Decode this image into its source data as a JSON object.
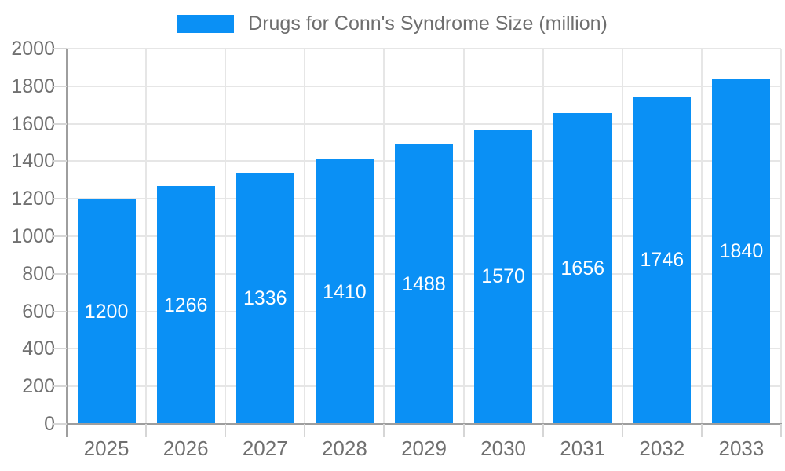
{
  "legend": {
    "label": "Drugs for Conn's Syndrome Size (million)",
    "swatch_color": "#0a90f5"
  },
  "chart_data": {
    "type": "bar",
    "title": "Drugs for Conn's Syndrome Size (million)",
    "categories": [
      "2025",
      "2026",
      "2027",
      "2028",
      "2029",
      "2030",
      "2031",
      "2032",
      "2033"
    ],
    "series": [
      {
        "name": "Drugs for Conn's Syndrome Size (million)",
        "values": [
          1200,
          1266,
          1336,
          1410,
          1488,
          1570,
          1656,
          1746,
          1840
        ]
      }
    ],
    "xlabel": "",
    "ylabel": "",
    "ylim": [
      0,
      2000
    ],
    "yticks": [
      0,
      200,
      400,
      600,
      800,
      1000,
      1200,
      1400,
      1600,
      1800,
      2000
    ],
    "bar_color": "#0a90f5",
    "value_label_color": "#ffffff",
    "grid": true,
    "legend_position": "top"
  }
}
